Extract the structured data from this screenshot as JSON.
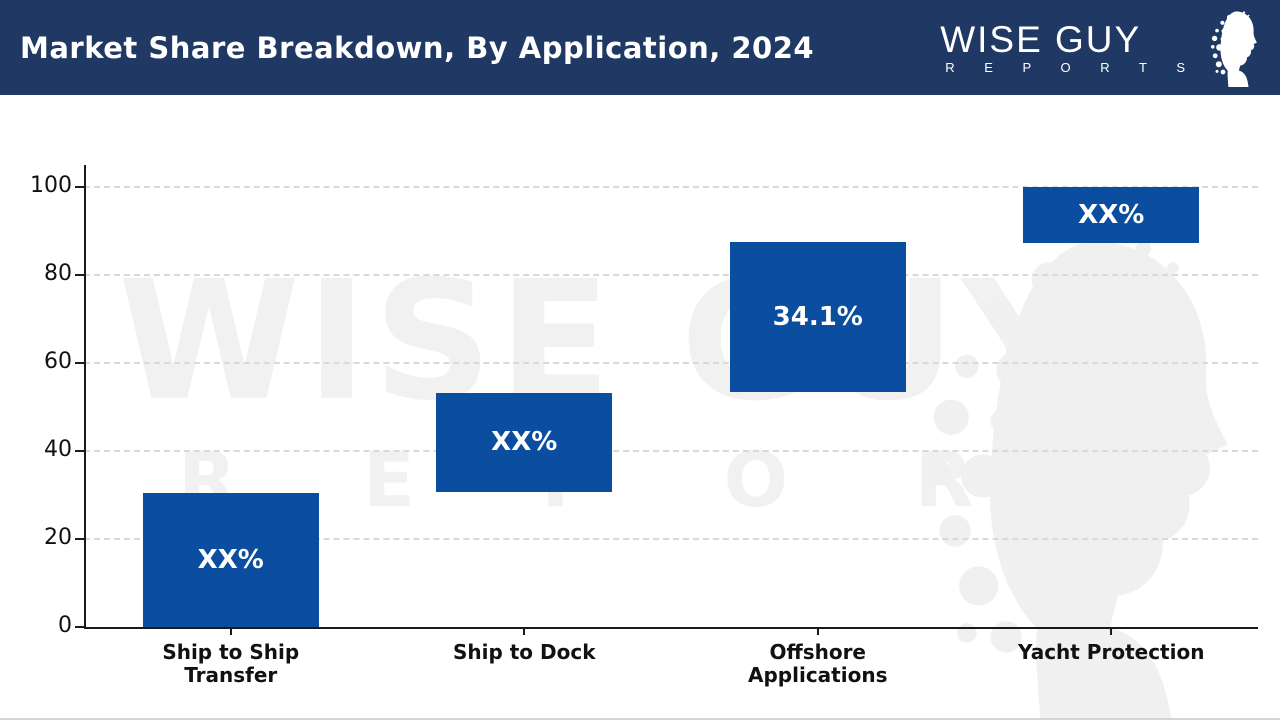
{
  "header": {
    "title": "Market Share Breakdown, By Application, 2024",
    "bg_color": "#1f3864",
    "logo": {
      "wordmark": "WISE GUY",
      "subtitle": "R E P O R T S"
    }
  },
  "watermark": {
    "line1": "WISE GUY",
    "line2": "R E P O R T S"
  },
  "chart_data": {
    "type": "bar",
    "subtype": "waterfall",
    "title": "Market Share Breakdown, By Application, 2024",
    "categories": [
      "Ship to Ship Transfer",
      "Ship to Dock",
      "Offshore Applications",
      "Yacht Protection"
    ],
    "category_lines": [
      [
        "Ship to Ship",
        "Transfer"
      ],
      [
        "Ship to Dock"
      ],
      [
        "Offshore",
        "Applications"
      ],
      [
        "Yacht Protection"
      ]
    ],
    "segments": [
      {
        "category": "Ship to Ship Transfer",
        "start": 0,
        "end": 30.5,
        "label": "XX%"
      },
      {
        "category": "Ship to Dock",
        "start": 30.7,
        "end": 53.2,
        "label": "XX%"
      },
      {
        "category": "Offshore Applications",
        "start": 53.4,
        "end": 87.5,
        "label": "34.1%"
      },
      {
        "category": "Yacht Protection",
        "start": 87.3,
        "end": 100,
        "label": "XX%"
      }
    ],
    "xlabel": "",
    "ylabel": "",
    "ylim": [
      0,
      100
    ],
    "yticks": [
      0,
      20,
      40,
      60,
      80,
      100
    ],
    "grid": "horizontal-dashed",
    "legend_position": "none",
    "bar_color": "#0b4d9f",
    "bar_label_color": "#ffffff",
    "axis_color": "#1a1a1a"
  }
}
